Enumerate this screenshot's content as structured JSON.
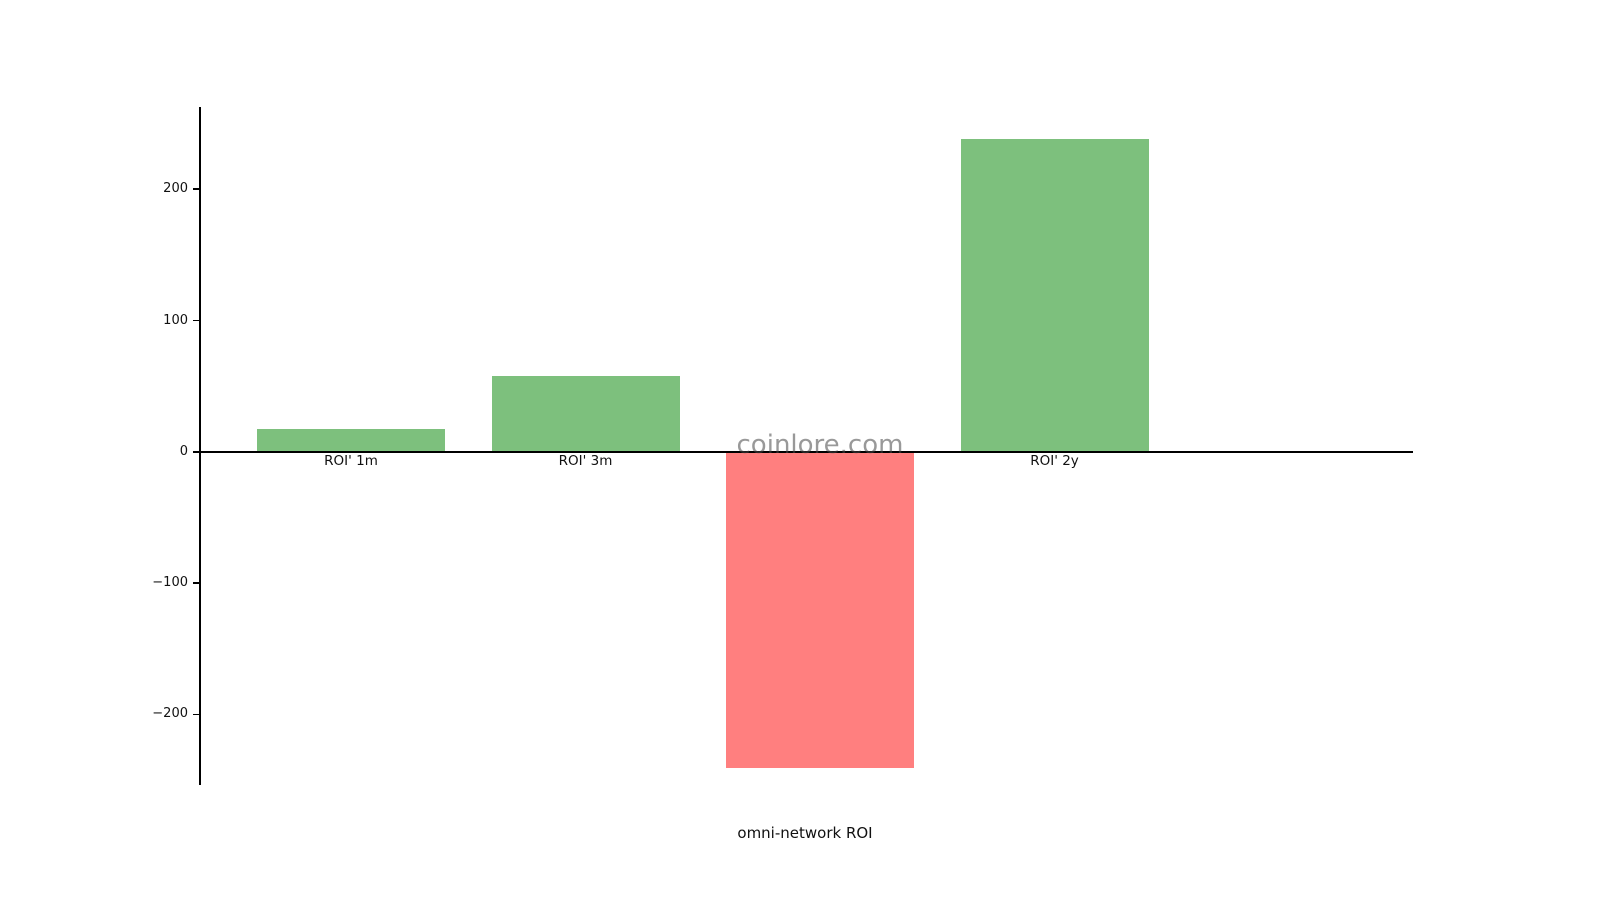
{
  "chart_data": {
    "type": "bar",
    "title": "omni-network ROI",
    "categories": [
      "ROI' 1m",
      "ROI' 3m",
      "",
      "ROI' 2y"
    ],
    "values": [
      17,
      58,
      -241,
      238
    ],
    "yticks": [
      200,
      100,
      0,
      -100,
      -200
    ],
    "ylim": [
      -254,
      263
    ],
    "grid": false,
    "legend": "none",
    "colors": {
      "positive_bar": "#7dc07d",
      "negative_bar": "#ff7f7f",
      "axis": "#000000",
      "text": "#111111",
      "watermark": "rgba(70,70,70,0.55)"
    },
    "notes": "third category label hidden behind watermark"
  },
  "watermark": {
    "text": "coinlore.com"
  },
  "title": {
    "text": "omni-network ROI"
  }
}
